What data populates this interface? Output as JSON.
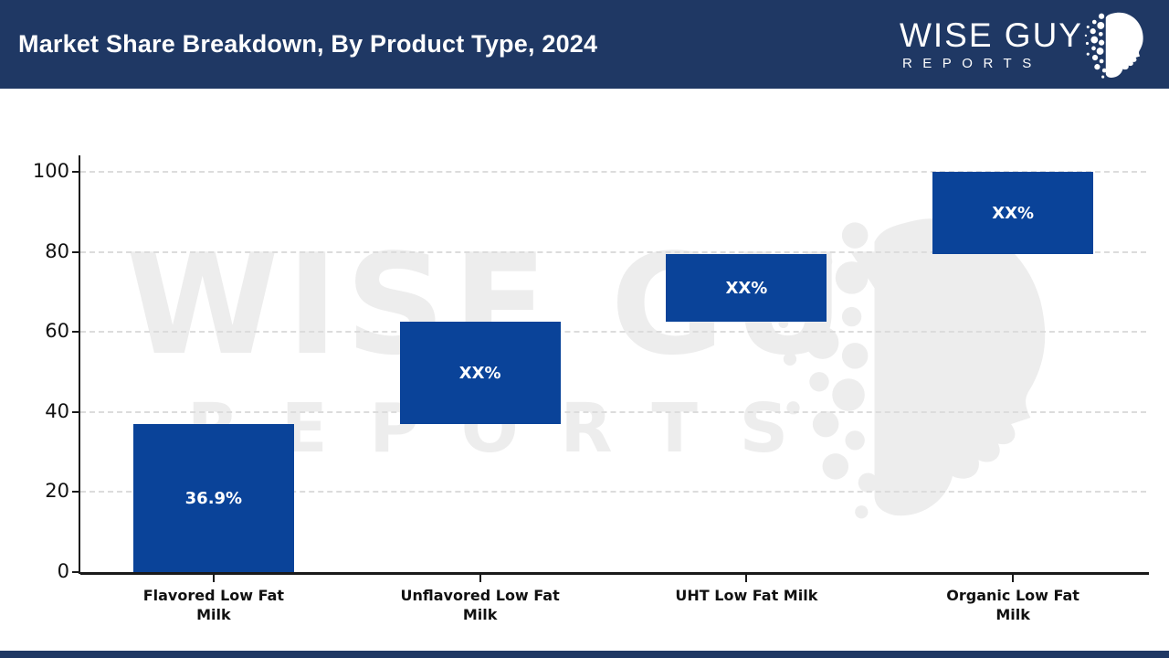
{
  "header": {
    "title": "Market Share Breakdown, By Product Type, 2024",
    "bg_color": "#1F3864",
    "logo": {
      "line1": "WISE GUY",
      "line2": "REPORTS"
    }
  },
  "watermark": {
    "line1": "WISE GUY",
    "line2": "REPORTS",
    "color": "#EDEDED"
  },
  "chart_data": {
    "type": "bar",
    "subtype": "waterfall",
    "title": "Market Share Breakdown, By Product Type, 2024",
    "xlabel": "",
    "ylabel": "",
    "ylim": [
      0,
      105
    ],
    "yticks": [
      "0",
      "20",
      "40",
      "60",
      "80",
      "100"
    ],
    "grid": true,
    "bar_color": "#0A4399",
    "bar_label_color": "#FFFFFF",
    "categories": [
      {
        "name": "Flavored Low Fat Milk",
        "lines": [
          "Flavored Low Fat",
          "Milk"
        ]
      },
      {
        "name": "Unflavored Low Fat Milk",
        "lines": [
          "Unflavored Low Fat",
          "Milk"
        ]
      },
      {
        "name": "UHT Low Fat Milk",
        "lines": [
          "UHT Low Fat Milk"
        ]
      },
      {
        "name": "Organic Low Fat Milk",
        "lines": [
          "Organic Low Fat",
          "Milk"
        ]
      }
    ],
    "segments": [
      {
        "category": "Flavored Low Fat Milk",
        "start": 0,
        "end": 36.9,
        "value_shown": "36.9%"
      },
      {
        "category": "Unflavored Low Fat Milk",
        "start": 36.9,
        "end": 62.5,
        "value_shown": "XX%"
      },
      {
        "category": "UHT Low Fat Milk",
        "start": 62.5,
        "end": 79.4,
        "value_shown": "XX%"
      },
      {
        "category": "Organic Low Fat Milk",
        "start": 79.4,
        "end": 100,
        "value_shown": "XX%"
      }
    ]
  }
}
